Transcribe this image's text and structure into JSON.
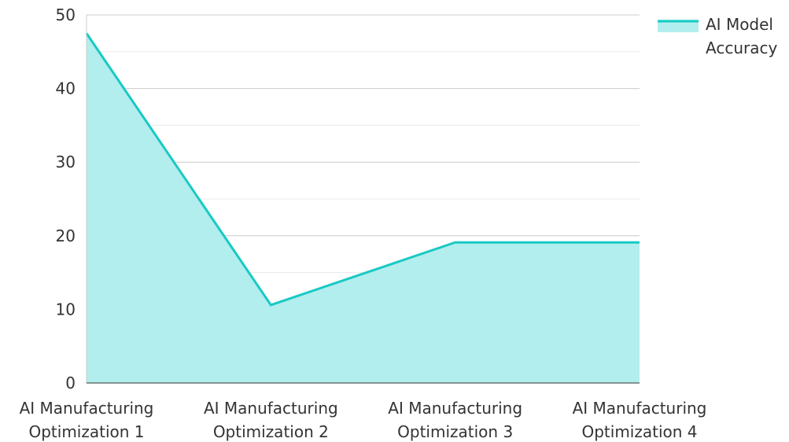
{
  "chart_data": {
    "type": "area",
    "categories": [
      [
        "AI Manufacturing",
        "Optimization 1"
      ],
      [
        "AI Manufacturing",
        "Optimization 2"
      ],
      [
        "AI Manufacturing",
        "Optimization 3"
      ],
      [
        "AI Manufacturing",
        "Optimization 4"
      ]
    ],
    "series": [
      {
        "name": [
          "AI Model",
          "Accuracy"
        ],
        "values": [
          47.5,
          10.6,
          19.1,
          19.1
        ],
        "line_color": "#19c9c4",
        "fill_color": "#b2eeed"
      }
    ],
    "ylim": [
      0,
      50
    ],
    "yticks": [
      0,
      10,
      20,
      30,
      40,
      50
    ],
    "grid": true,
    "minor_grid": true,
    "legend_position": "top-right",
    "title": "",
    "xlabel": "",
    "ylabel": ""
  }
}
